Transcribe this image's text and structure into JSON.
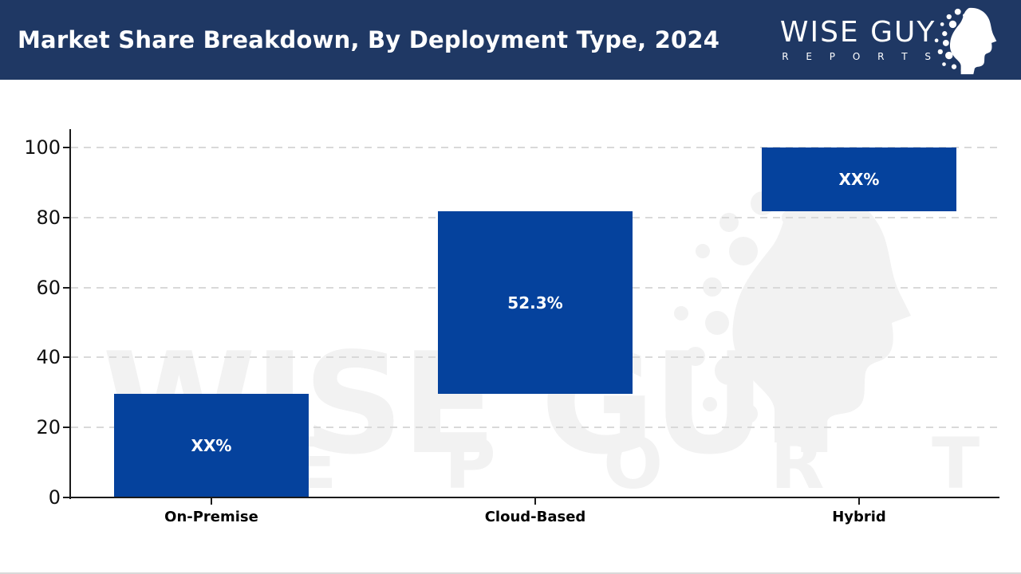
{
  "header": {
    "title": "Market Share Breakdown, By Deployment Type, 2024",
    "logo": {
      "name": "WISE GUY",
      "subtitle": "R E P O R T S"
    }
  },
  "watermark": {
    "line1": "WISE GUY",
    "line2": "R E P O R T S"
  },
  "chart_data": {
    "type": "bar",
    "variant": "floating-waterfall",
    "title": "Market Share Breakdown, By Deployment Type, 2024",
    "categories": [
      "On-Premise",
      "Cloud-Based",
      "Hybrid"
    ],
    "segments": [
      {
        "category": "On-Premise",
        "start": 0,
        "end": 29.5,
        "value_label": "XX%"
      },
      {
        "category": "Cloud-Based",
        "start": 29.5,
        "end": 81.8,
        "value_label": "52.3%"
      },
      {
        "category": "Hybrid",
        "start": 81.8,
        "end": 100,
        "value_label": "XX%"
      }
    ],
    "xlabel": "",
    "ylabel": "",
    "yticks": [
      0,
      20,
      40,
      60,
      80,
      100
    ],
    "ylim": [
      0,
      105
    ],
    "grid": "horizontal-dashed",
    "legend": "none",
    "bar_color": "#05429d"
  },
  "colors": {
    "header_bg": "#1f3864",
    "bar": "#05429d",
    "grid": "#d9d9d9",
    "axis": "#1a1a1a",
    "watermark": "#f2f2f2",
    "title_text": "#ffffff"
  }
}
